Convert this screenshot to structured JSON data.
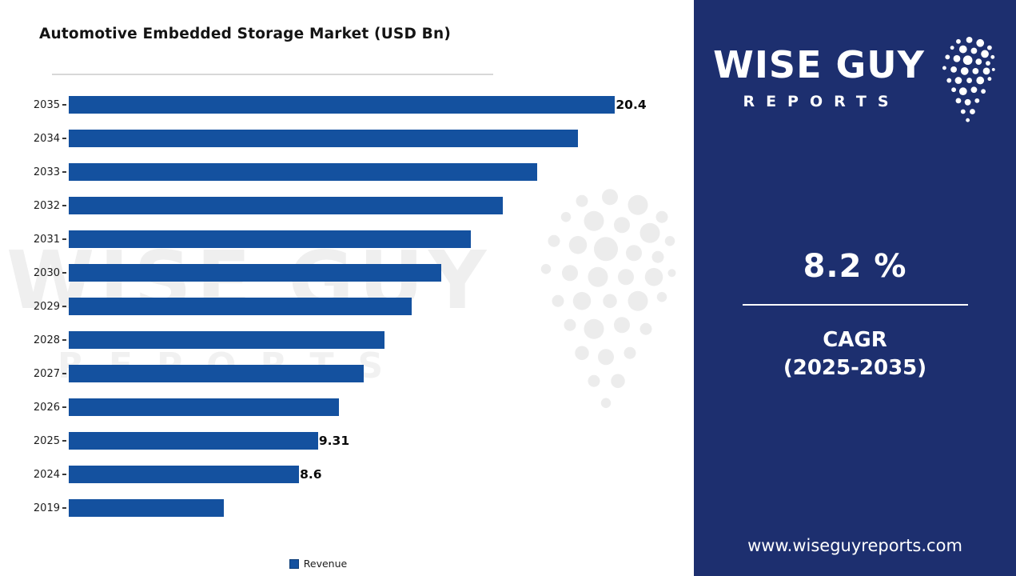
{
  "chart_data": {
    "type": "bar",
    "orientation": "horizontal",
    "title": "Automotive Embedded Storage Market (USD Bn)",
    "categories": [
      "2035",
      "2034",
      "2033",
      "2032",
      "2031",
      "2030",
      "2029",
      "2028",
      "2027",
      "2026",
      "2025",
      "2024",
      "2019"
    ],
    "values": [
      20.4,
      19.0,
      17.5,
      16.2,
      15.0,
      13.9,
      12.8,
      11.8,
      11.0,
      10.1,
      9.31,
      8.6,
      5.8
    ],
    "bar_labels": [
      "20.4",
      "",
      "",
      "",
      "",
      "",
      "",
      "",
      "",
      "",
      "9.31",
      "8.6",
      ""
    ],
    "xlim": [
      0,
      21
    ],
    "ylabel": "",
    "xlabel": "",
    "grid": false,
    "legend": [
      "Revenue"
    ],
    "legend_position": "bottom",
    "bar_color": "#14519f"
  },
  "watermark": {
    "line1": "WISE GUY",
    "line2": "REPORTS"
  },
  "brand_panel": {
    "logo_top": "WISE GUY",
    "logo_bottom": "REPORTS",
    "cagr_value": "8.2 %",
    "cagr_label": "CAGR",
    "cagr_period": "(2025-2035)",
    "website": "www.wiseguyreports.com",
    "bg_color": "#1d2f6f"
  }
}
